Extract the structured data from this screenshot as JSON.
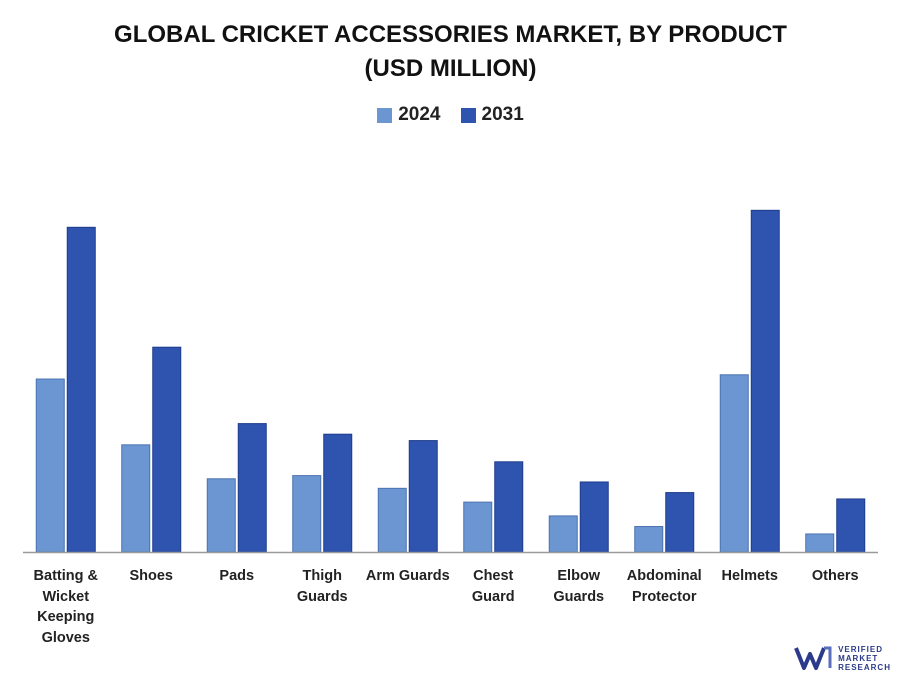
{
  "chart_data": {
    "type": "bar",
    "title_lines": [
      "GLOBAL CRICKET ACCESSORIES MARKET, BY PRODUCT",
      "(USD MILLION)"
    ],
    "categories": [
      [
        "Batting &",
        "Wicket",
        "Keeping",
        "Gloves"
      ],
      [
        "Shoes"
      ],
      [
        "Pads"
      ],
      [
        "Thigh",
        "Guards"
      ],
      [
        "Arm Guards"
      ],
      [
        "Chest",
        "Guard"
      ],
      [
        "Elbow",
        "Guards"
      ],
      [
        "Abdominal",
        "Protector"
      ],
      [
        "Helmets"
      ],
      [
        "Others"
      ]
    ],
    "series": [
      {
        "name": "2024",
        "color": "#6b96d2",
        "values": [
          163,
          101,
          69,
          72,
          60,
          47,
          34,
          24,
          167,
          17
        ]
      },
      {
        "name": "2031",
        "color": "#2e54b0",
        "values": [
          306,
          193,
          121,
          111,
          105,
          85,
          66,
          56,
          322,
          50
        ]
      }
    ],
    "ylim": [
      0,
      360
    ],
    "grid": false,
    "legend_position": "top-center"
  },
  "logo": {
    "lines": [
      "VERIFIED",
      "MARKET",
      "RESEARCH"
    ]
  }
}
